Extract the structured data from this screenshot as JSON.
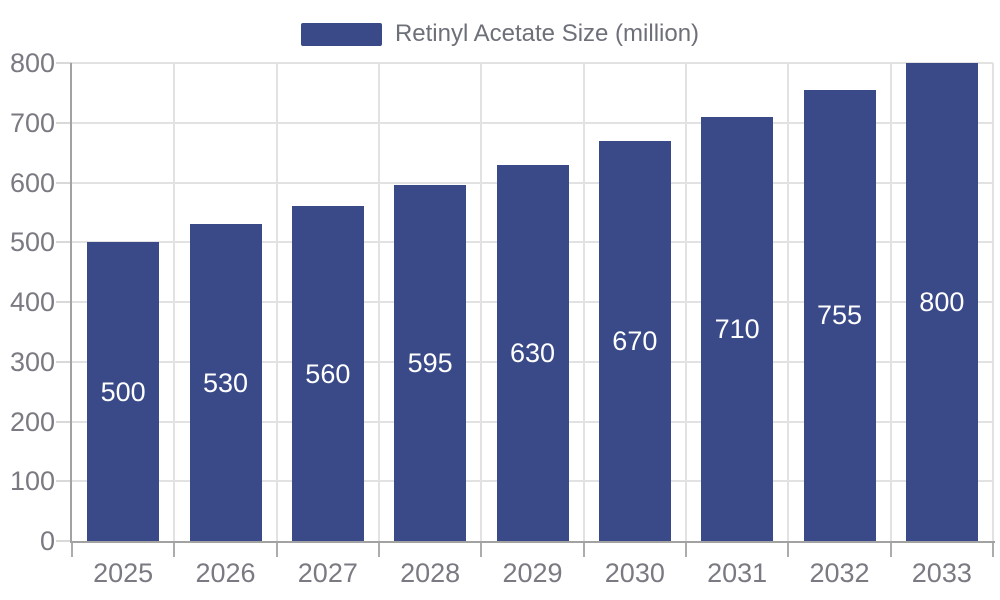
{
  "legend": {
    "label": "Retinyl Acetate Size (million)"
  },
  "colors": {
    "bar": "#3A4A88",
    "value_label": "#FFFFFF",
    "axis_label": "#7A7A82",
    "legend_label": "#6E7079",
    "axis_line": "#A2A2A2",
    "x_tick": "#ACACAC",
    "y_tick": "#D9D9D9",
    "gridline": "#E2E2E2",
    "background": "#FFFFFF"
  },
  "chart_data": {
    "type": "bar",
    "title": "",
    "categories": [
      "2025",
      "2026",
      "2027",
      "2028",
      "2029",
      "2030",
      "2031",
      "2032",
      "2033"
    ],
    "series": [
      {
        "name": "Retinyl Acetate Size (million)",
        "values": [
          500,
          530,
          560,
          595,
          630,
          670,
          710,
          755,
          800
        ]
      }
    ],
    "value_labels": [
      500,
      530,
      560,
      595,
      630,
      670,
      710,
      755,
      800
    ],
    "xlabel": "",
    "ylabel": "",
    "ylim": [
      0,
      800
    ],
    "ytick_interval": 100,
    "ytick_labels": [
      "0",
      "100",
      "200",
      "300",
      "400",
      "500",
      "600",
      "700",
      "800"
    ],
    "grid": true,
    "legend_position": "top",
    "value_label_position": "inside-middle"
  }
}
